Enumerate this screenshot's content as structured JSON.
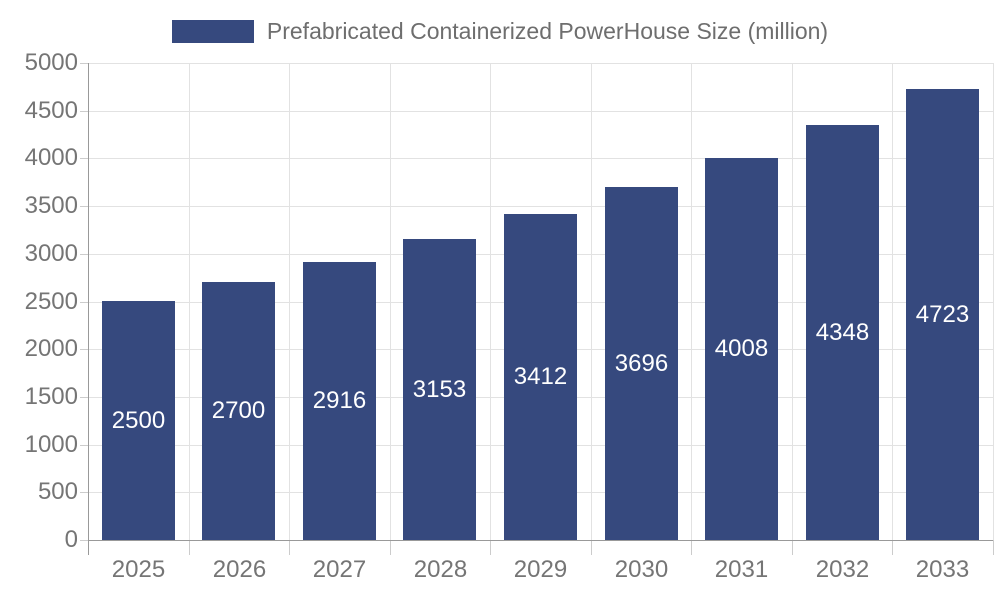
{
  "chart_data": {
    "type": "bar",
    "title": "Prefabricated Containerized PowerHouse Size (million)",
    "legend_position": "top",
    "legend_entries": [
      "Prefabricated Containerized PowerHouse Size (million)"
    ],
    "categories": [
      "2025",
      "2026",
      "2027",
      "2028",
      "2029",
      "2030",
      "2031",
      "2032",
      "2033"
    ],
    "values": [
      2500,
      2700,
      2916,
      3153,
      3412,
      3696,
      4008,
      4348,
      4723
    ],
    "series": [
      {
        "name": "Prefabricated Containerized PowerHouse Size (million)",
        "values": [
          2500,
          2700,
          2916,
          3153,
          3412,
          3696,
          4008,
          4348,
          4723
        ]
      }
    ],
    "xlabel": "",
    "ylabel": "",
    "ylim": [
      0,
      5000
    ],
    "yticks": [
      0,
      500,
      1000,
      1500,
      2000,
      2500,
      3000,
      3500,
      4000,
      4500,
      5000
    ],
    "grid": true,
    "bar_labels_inside": true
  },
  "colors": {
    "bar_fill": "#36497e",
    "bar_label": "#ffffff",
    "tick_label": "#757575",
    "legend_text": "#6e6e6e",
    "grid_line": "#e2e2e2",
    "axis_line": "#999999",
    "minor_tick": "#cccccc",
    "background": "#ffffff"
  }
}
